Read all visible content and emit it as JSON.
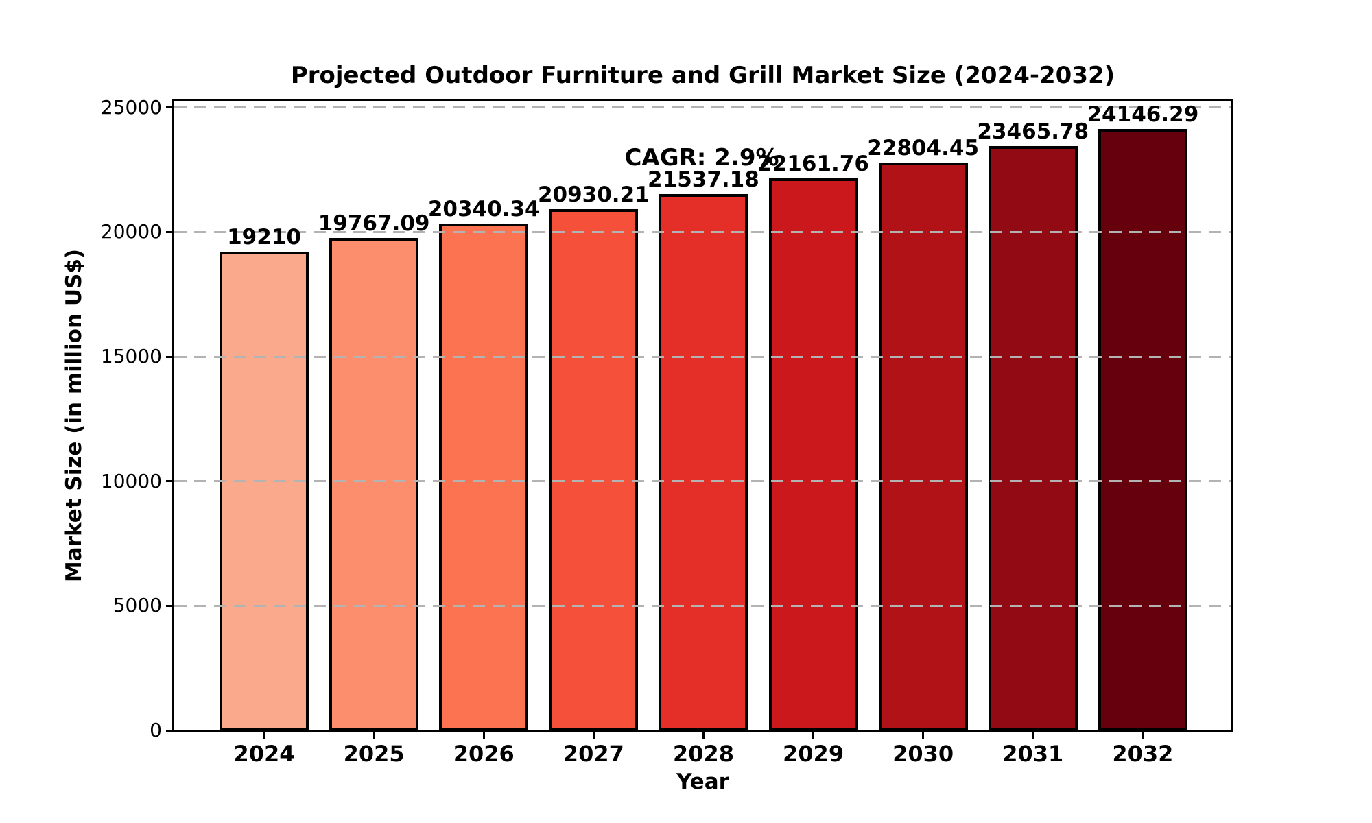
{
  "title": "Projected Outdoor Furniture and Grill Market Size (2024-2032)",
  "chart_data": {
    "type": "bar",
    "title": "Projected Outdoor Furniture and Grill Market Size (2024-2032)",
    "xlabel": "Year",
    "ylabel": "Market Size (in million US$)",
    "annotation": "CAGR: 2.9%",
    "categories": [
      "2024",
      "2025",
      "2026",
      "2027",
      "2028",
      "2029",
      "2030",
      "2031",
      "2032"
    ],
    "values": [
      19210,
      19767.09,
      20340.34,
      20930.21,
      21537.18,
      22161.76,
      22804.45,
      23465.78,
      24146.29
    ],
    "value_labels": [
      "19210",
      "19767.09",
      "20340.34",
      "20930.21",
      "21537.18",
      "22161.76",
      "22804.45",
      "23465.78",
      "24146.29"
    ],
    "bar_colors": [
      "#fba98c",
      "#fc8e6e",
      "#fb7351",
      "#f4503a",
      "#e32f27",
      "#cb181d",
      "#b11218",
      "#920a13",
      "#67000d"
    ],
    "bar_edge_color": "#000000",
    "yticks": [
      0,
      5000,
      10000,
      15000,
      20000,
      25000
    ],
    "ytick_labels": [
      "0",
      "5000",
      "10000",
      "15000",
      "20000",
      "25000"
    ],
    "ylim": [
      0,
      25354
    ],
    "grid": "horizontal dashed gridlines drawn above bars",
    "grid_color": "#b3b3b3",
    "legend": "none",
    "background_color": "#ffffff"
  }
}
